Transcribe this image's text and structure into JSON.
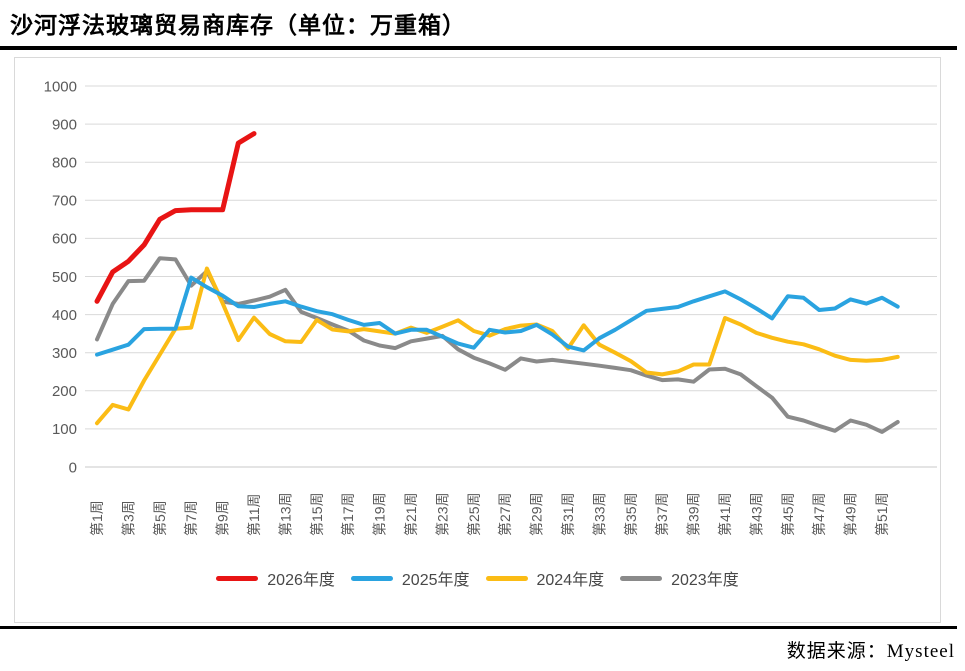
{
  "source_note": "数据来源：Mysteel",
  "chart_data": {
    "type": "line",
    "title": "沙河浮法玻璃贸易商库存（单位：万重箱）",
    "y_unit": "万重箱",
    "x_unit": "周",
    "x_weeks": 52,
    "x_label_every": 2,
    "x_tick_labels": [
      "第1周",
      "第3周",
      "第5周",
      "第7周",
      "第9周",
      "第11周",
      "第13周",
      "第15周",
      "第17周",
      "第19周",
      "第21周",
      "第23周",
      "第25周",
      "第27周",
      "第29周",
      "第31周",
      "第33周",
      "第35周",
      "第37周",
      "第39周",
      "第41周",
      "第43周",
      "第45周",
      "第47周",
      "第49周",
      "第51周"
    ],
    "ylim": [
      0,
      1000
    ],
    "y_ticks": [
      0,
      100,
      200,
      300,
      400,
      500,
      600,
      700,
      800,
      900,
      1000
    ],
    "grid": "horizontal",
    "legend_position": "bottom",
    "colors": {
      "grid": "#d9d9d9",
      "axis_text": "#595959"
    },
    "series": [
      {
        "name": "2026年度",
        "color": "#e81414",
        "values": [
          435,
          512,
          540,
          583,
          650,
          673,
          675,
          675,
          675,
          850,
          875
        ]
      },
      {
        "name": "2025年度",
        "color": "#2aa3e0",
        "values": [
          295,
          308,
          321,
          362,
          363,
          363,
          497,
          472,
          450,
          422,
          420,
          428,
          435,
          421,
          409,
          401,
          386,
          373,
          378,
          350,
          360,
          360,
          342,
          324,
          313,
          360,
          353,
          357,
          373,
          348,
          316,
          306,
          338,
          360,
          385,
          410,
          415,
          420,
          435,
          448,
          461,
          440,
          416,
          390,
          448,
          444,
          412,
          416,
          440,
          429,
          444,
          421
        ]
      },
      {
        "name": "2024年度",
        "color": "#fbbc15",
        "values": [
          115,
          163,
          151,
          227,
          295,
          363,
          366,
          521,
          430,
          333,
          392,
          349,
          330,
          328,
          386,
          361,
          356,
          362,
          356,
          350,
          366,
          352,
          368,
          385,
          357,
          345,
          362,
          371,
          374,
          357,
          311,
          372,
          321,
          300,
          278,
          248,
          243,
          251,
          269,
          269,
          391,
          374,
          352,
          339,
          329,
          322,
          309,
          292,
          281,
          279,
          281,
          289
        ]
      },
      {
        "name": "2023年度",
        "color": "#8a8a8a",
        "values": [
          335,
          428,
          488,
          489,
          548,
          545,
          476,
          514,
          434,
          428,
          437,
          447,
          465,
          407,
          391,
          374,
          358,
          332,
          319,
          312,
          330,
          337,
          344,
          309,
          287,
          272,
          255,
          285,
          277,
          281,
          276,
          271,
          266,
          260,
          254,
          240,
          228,
          230,
          224,
          256,
          258,
          243,
          212,
          182,
          132,
          122,
          108,
          95,
          122,
          111,
          92,
          118
        ]
      }
    ]
  }
}
